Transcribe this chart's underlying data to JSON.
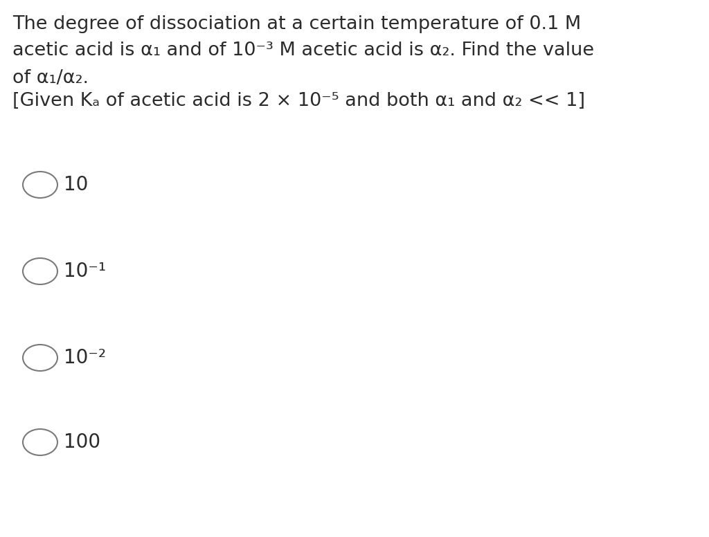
{
  "background_color": "#ffffff",
  "text_color": "#1a1a1a",
  "line1": "The degree of dissociation at a certain temperature of 0.1 M",
  "line2": "acetic acid is α₁ and of 10⁻³ M acetic acid is α₂. Find the value",
  "line3": "of α₁/α₂.",
  "line4": "[Given Kₐ of acetic acid is 2 × 10⁻⁵ and both α₁ and α₂ << 1]",
  "options": [
    "10",
    "10⁻¹",
    "10⁻²",
    "100"
  ],
  "font_size_question": 19.5,
  "font_size_options": 20,
  "text_color_dark": "#2b2b2b",
  "circle_edge_color": "#7a7a7a"
}
